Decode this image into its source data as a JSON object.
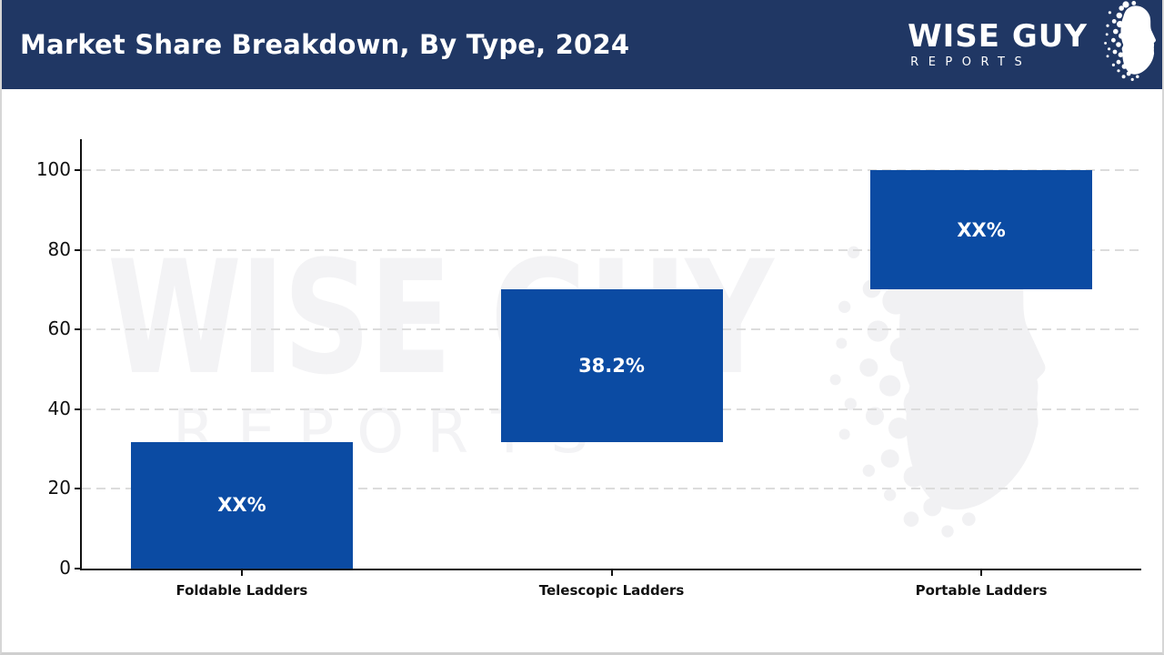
{
  "header": {
    "title": "Market Share Breakdown, By Type, 2024",
    "logo": {
      "line1": "WISE GUY",
      "line2": "REPORTS"
    }
  },
  "watermark": {
    "line1": "WISE GUY",
    "line2": "R E P O R T S"
  },
  "colors": {
    "header_bg": "#203764",
    "bar": "#0b4ba3",
    "grid": "#dcdcdc",
    "axis": "#111111",
    "bar_label": "#ffffff",
    "watermark": "#f3f3f5"
  },
  "chart_data": {
    "type": "bar",
    "subtype": "waterfall",
    "title": "Market Share Breakdown, By Type, 2024",
    "categories": [
      "Foldable Ladders",
      "Telescopic Ladders",
      "Portable Ladders"
    ],
    "segments": [
      {
        "category": "Foldable Ladders",
        "start": 0,
        "end": 31.8,
        "label": "XX%"
      },
      {
        "category": "Telescopic Ladders",
        "start": 31.8,
        "end": 70,
        "label": "38.2%"
      },
      {
        "category": "Portable Ladders",
        "start": 70,
        "end": 100,
        "label": "XX%"
      }
    ],
    "xlabel": "",
    "ylabel": "",
    "ylim": [
      0,
      100
    ],
    "yticks": [
      0,
      20,
      40,
      60,
      80,
      100
    ],
    "grid": "horizontal-dashed",
    "legend": "none",
    "bar_color": "#0b4ba3",
    "bar_label_color": "#ffffff"
  }
}
